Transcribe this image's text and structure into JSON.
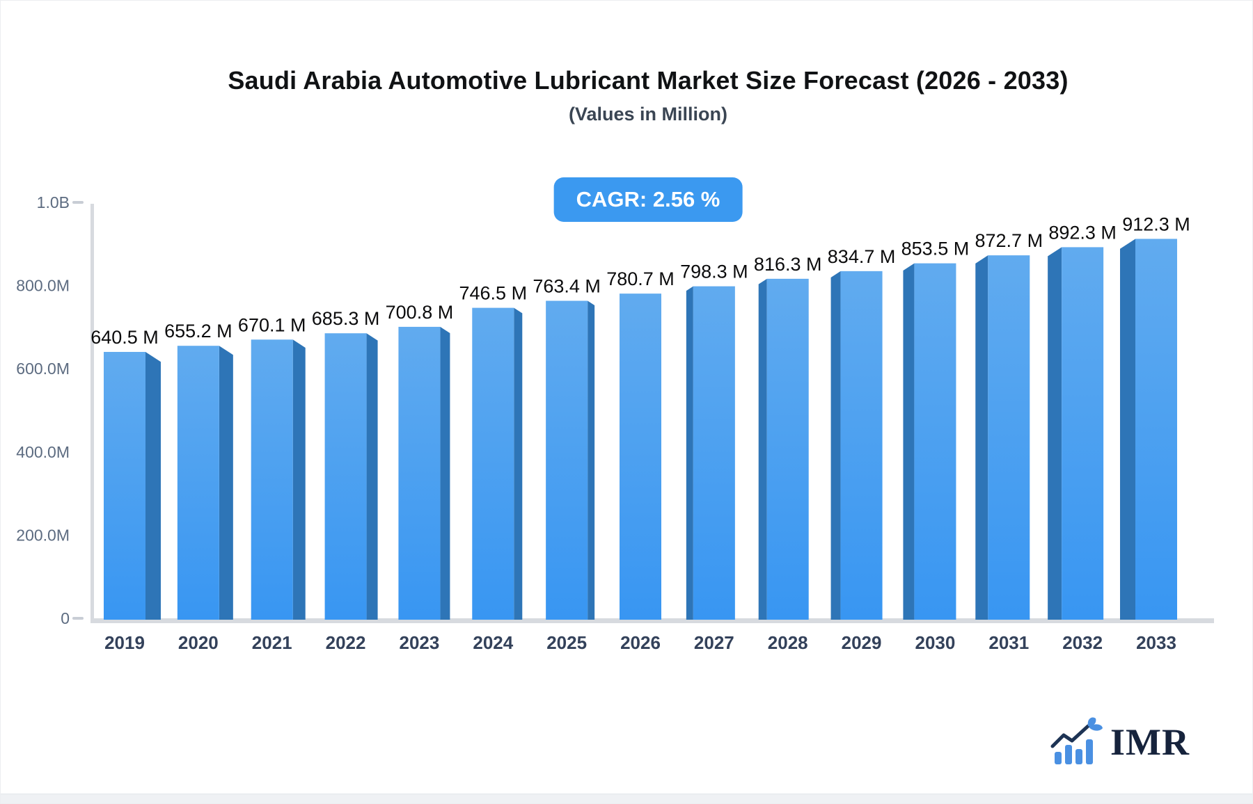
{
  "header": {
    "title": "Saudi Arabia Automotive Lubricant Market Size Forecast (2026 - 2033)",
    "subtitle": "(Values in Million)"
  },
  "badge": {
    "label": "CAGR: 2.56 %"
  },
  "chart_data": {
    "type": "bar",
    "title": "Saudi Arabia Automotive Lubricant Market Size Forecast (2026 - 2033)",
    "subtitle": "(Values in Million)",
    "categories": [
      "2019",
      "2020",
      "2021",
      "2022",
      "2023",
      "2024",
      "2025",
      "2026",
      "2027",
      "2028",
      "2029",
      "2030",
      "2031",
      "2032",
      "2033"
    ],
    "values": [
      640.5,
      655.2,
      670.1,
      685.3,
      700.8,
      746.5,
      763.4,
      780.7,
      798.3,
      816.3,
      834.7,
      853.5,
      872.7,
      892.3,
      912.3
    ],
    "value_labels": [
      "640.5 M",
      "655.2 M",
      "670.1 M",
      "685.3 M",
      "700.8 M",
      "746.5 M",
      "763.4 M",
      "780.7 M",
      "798.3 M",
      "816.3 M",
      "834.7 M",
      "853.5 M",
      "872.7 M",
      "892.3 M",
      "912.3 M"
    ],
    "xlabel": "",
    "ylabel": "",
    "ylim": [
      0,
      1000
    ],
    "yticks": [
      {
        "label": "1.0B",
        "value": 1000,
        "dash": true
      },
      {
        "label": "800.0M",
        "value": 800,
        "dash": false
      },
      {
        "label": "600.0M",
        "value": 600,
        "dash": false
      },
      {
        "label": "400.0M",
        "value": 400,
        "dash": false
      },
      {
        "label": "200.0M",
        "value": 200,
        "dash": false
      },
      {
        "label": "0",
        "value": 0,
        "dash": true
      }
    ],
    "grid": false,
    "legend": false,
    "style": "3d-perspective-columns"
  },
  "logo": {
    "text": "IMR"
  },
  "colors": {
    "bar_face_top": "#61ABEF",
    "bar_face_bottom": "#3896F2",
    "bar_side": "#2E75B7",
    "axis": "#D7DADF",
    "tick_dash": "#C8CDD5",
    "y_label": "#5C6B80",
    "x_label": "#33415A",
    "value_label": "#0B0B0C",
    "badge_bg": "#3B99F0",
    "badge_text": "#FFFFFF",
    "logo_navy": "#16233C",
    "logo_blue": "#4A90E2"
  }
}
